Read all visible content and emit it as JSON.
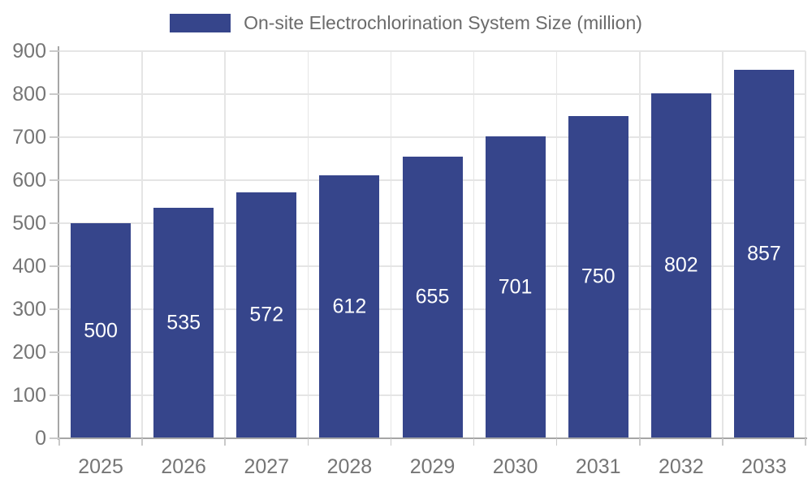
{
  "legend": {
    "label": "On-site Electrochlorination System Size (million)"
  },
  "chart_data": {
    "type": "bar",
    "title": "",
    "categories": [
      "2025",
      "2026",
      "2027",
      "2028",
      "2029",
      "2030",
      "2031",
      "2032",
      "2033"
    ],
    "series": [
      {
        "name": "On-site Electrochlorination System Size (million)",
        "values": [
          500,
          535,
          572,
          612,
          655,
          701,
          750,
          802,
          857
        ]
      }
    ],
    "xlabel": "",
    "ylabel": "",
    "ylim": [
      0,
      900
    ],
    "ytick_interval": 100,
    "ytick_labels": [
      "0",
      "100",
      "200",
      "300",
      "400",
      "500",
      "600",
      "700",
      "800",
      "900"
    ],
    "grid": true,
    "legend_position": "top-center",
    "value_labels": "inside-center"
  },
  "colors": {
    "bar": "#36458b",
    "value_label": "#ffffff",
    "axis_line": "#a6a6a6",
    "grid_line": "#e5e5e5",
    "tick_mark": "#c9c9c9",
    "tick_label": "#757575",
    "legend_text": "#6b6b6b",
    "background": "#ffffff"
  }
}
